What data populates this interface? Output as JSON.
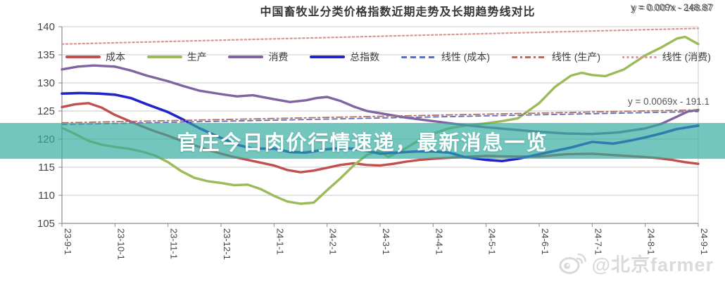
{
  "banner": {
    "text": "官庄今日肉价行情速递，最新消息一览",
    "color_rgba": "rgba(49,171,157,0.68)"
  },
  "watermark": {
    "icon": "weibo-icon",
    "text": "@北京farmer",
    "color": "#d9d9d9"
  },
  "equations": {
    "top_a": "y = 0.009x - 248.87",
    "top_b": "y = 0.007x - 168.87",
    "mid": "y = 0.0069x - 191.1"
  },
  "chart_data": {
    "type": "line",
    "title": "中国畜牧业分类价格指数近期走势及长期趋势线对比",
    "xlabel": "",
    "ylabel": "",
    "ylim": [
      105,
      140
    ],
    "y_ticks": [
      105,
      110,
      115,
      120,
      125,
      130,
      135,
      140
    ],
    "x_tick_labels": [
      "23-9-1",
      "23-10-1",
      "23-11-1",
      "23-12-1",
      "24-1-1",
      "24-2-1",
      "24-3-1",
      "24-4-1",
      "24-5-1",
      "24-6-1",
      "24-7-1",
      "24-8-1",
      "24-9-1"
    ],
    "x_range_months": [
      0,
      12
    ],
    "grid": true,
    "legend_position": "top",
    "axis_color": "#8a8a8a",
    "grid_color": "#c9c9c9",
    "tick_label_color": "#454545",
    "series": [
      {
        "name": "成本",
        "color": "#C0504D",
        "style": "solid",
        "width": 3.4,
        "points": [
          [
            0,
            125.7
          ],
          [
            0.25,
            126.2
          ],
          [
            0.5,
            126.4
          ],
          [
            0.75,
            125.6
          ],
          [
            1,
            124.3
          ],
          [
            1.25,
            123.3
          ],
          [
            1.5,
            122.3
          ],
          [
            1.75,
            121.4
          ],
          [
            2,
            120.6
          ],
          [
            2.25,
            119.7
          ],
          [
            2.5,
            118.9
          ],
          [
            2.75,
            118.1
          ],
          [
            3,
            117.4
          ],
          [
            3.25,
            116.8
          ],
          [
            3.5,
            116.3
          ],
          [
            3.75,
            115.8
          ],
          [
            4,
            115.3
          ],
          [
            4.25,
            114.5
          ],
          [
            4.5,
            114.1
          ],
          [
            4.75,
            114.4
          ],
          [
            5,
            114.9
          ],
          [
            5.25,
            115.4
          ],
          [
            5.5,
            115.7
          ],
          [
            5.75,
            115.4
          ],
          [
            6,
            115.3
          ],
          [
            6.25,
            115.6
          ],
          [
            6.5,
            116.0
          ],
          [
            6.75,
            116.3
          ],
          [
            7,
            116.5
          ],
          [
            7.5,
            116.8
          ],
          [
            8,
            117.0
          ],
          [
            8.5,
            116.9
          ],
          [
            9,
            116.9
          ],
          [
            9.25,
            117.1
          ],
          [
            9.5,
            117.3
          ],
          [
            10,
            117.4
          ],
          [
            10.5,
            117.1
          ],
          [
            11,
            116.8
          ],
          [
            11.25,
            116.6
          ],
          [
            11.5,
            116.3
          ],
          [
            11.75,
            115.9
          ],
          [
            12,
            115.6
          ]
        ]
      },
      {
        "name": "生产",
        "color": "#9BBB59",
        "style": "solid",
        "width": 3.4,
        "points": [
          [
            0,
            122.0
          ],
          [
            0.25,
            120.9
          ],
          [
            0.5,
            119.7
          ],
          [
            0.75,
            119.0
          ],
          [
            1,
            118.6
          ],
          [
            1.25,
            118.3
          ],
          [
            1.5,
            117.8
          ],
          [
            1.75,
            117.1
          ],
          [
            2,
            115.9
          ],
          [
            2.25,
            114.3
          ],
          [
            2.5,
            113.1
          ],
          [
            2.75,
            112.5
          ],
          [
            3,
            112.2
          ],
          [
            3.25,
            111.8
          ],
          [
            3.5,
            111.9
          ],
          [
            3.75,
            111.1
          ],
          [
            4,
            109.9
          ],
          [
            4.25,
            108.9
          ],
          [
            4.5,
            108.5
          ],
          [
            4.75,
            108.7
          ],
          [
            5,
            110.9
          ],
          [
            5.25,
            113.0
          ],
          [
            5.5,
            115.3
          ],
          [
            5.75,
            117.2
          ],
          [
            6,
            117.9
          ],
          [
            6.15,
            116.8
          ],
          [
            6.4,
            117.9
          ],
          [
            6.7,
            119.6
          ],
          [
            7,
            121.0
          ],
          [
            7.3,
            121.9
          ],
          [
            7.6,
            122.4
          ],
          [
            8,
            122.8
          ],
          [
            8.3,
            123.2
          ],
          [
            8.6,
            123.7
          ],
          [
            9,
            126.4
          ],
          [
            9.3,
            129.3
          ],
          [
            9.6,
            131.3
          ],
          [
            9.8,
            131.8
          ],
          [
            10,
            131.4
          ],
          [
            10.25,
            131.2
          ],
          [
            10.6,
            132.4
          ],
          [
            11,
            134.9
          ],
          [
            11.3,
            136.3
          ],
          [
            11.6,
            137.9
          ],
          [
            11.75,
            138.2
          ],
          [
            12,
            136.9
          ]
        ]
      },
      {
        "name": "消费",
        "color": "#8064A2",
        "style": "solid",
        "width": 3.4,
        "points": [
          [
            0,
            132.4
          ],
          [
            0.3,
            132.9
          ],
          [
            0.6,
            133.1
          ],
          [
            1,
            132.9
          ],
          [
            1.3,
            132.2
          ],
          [
            1.6,
            131.3
          ],
          [
            2,
            130.3
          ],
          [
            2.3,
            129.4
          ],
          [
            2.6,
            128.6
          ],
          [
            3,
            128.0
          ],
          [
            3.3,
            127.6
          ],
          [
            3.6,
            127.8
          ],
          [
            4,
            127.1
          ],
          [
            4.3,
            126.6
          ],
          [
            4.6,
            126.9
          ],
          [
            4.8,
            127.3
          ],
          [
            5,
            127.5
          ],
          [
            5.25,
            126.8
          ],
          [
            5.5,
            125.8
          ],
          [
            5.75,
            125.0
          ],
          [
            6,
            124.6
          ],
          [
            6.5,
            123.8
          ],
          [
            7,
            123.2
          ],
          [
            7.5,
            122.6
          ],
          [
            8,
            122.1
          ],
          [
            8.5,
            121.7
          ],
          [
            9,
            121.3
          ],
          [
            9.5,
            121.0
          ],
          [
            10,
            120.9
          ],
          [
            10.5,
            121.2
          ],
          [
            11,
            121.9
          ],
          [
            11.3,
            122.7
          ],
          [
            11.6,
            124.0
          ],
          [
            11.8,
            124.9
          ],
          [
            12,
            125.2
          ]
        ]
      },
      {
        "name": "总指数",
        "color": "#2323CC",
        "style": "solid",
        "width": 3.6,
        "points": [
          [
            0,
            128.1
          ],
          [
            0.35,
            128.2
          ],
          [
            0.7,
            128.1
          ],
          [
            1,
            127.9
          ],
          [
            1.3,
            127.3
          ],
          [
            1.6,
            126.2
          ],
          [
            2,
            124.8
          ],
          [
            2.3,
            123.4
          ],
          [
            2.6,
            121.9
          ],
          [
            3,
            120.2
          ],
          [
            3.3,
            119.0
          ],
          [
            3.6,
            118.3
          ],
          [
            4,
            118.3
          ],
          [
            4.3,
            117.7
          ],
          [
            4.6,
            117.6
          ],
          [
            5,
            118.2
          ],
          [
            5.3,
            118.4
          ],
          [
            5.6,
            118.2
          ],
          [
            6,
            117.4
          ],
          [
            6.3,
            117.6
          ],
          [
            6.7,
            117.8
          ],
          [
            7,
            117.8
          ],
          [
            7.3,
            117.6
          ],
          [
            7.6,
            116.8
          ],
          [
            8,
            116.3
          ],
          [
            8.3,
            116.1
          ],
          [
            8.6,
            116.5
          ],
          [
            9,
            117.3
          ],
          [
            9.3,
            117.9
          ],
          [
            9.6,
            118.5
          ],
          [
            10,
            119.5
          ],
          [
            10.4,
            119.2
          ],
          [
            10.7,
            119.7
          ],
          [
            11,
            120.3
          ],
          [
            11.3,
            121.0
          ],
          [
            11.6,
            121.8
          ],
          [
            12,
            122.4
          ]
        ]
      },
      {
        "name": "线性 (成本)",
        "color": "#5F6FB4",
        "style": "dashed",
        "width": 1.8,
        "points": [
          [
            0,
            122.6
          ],
          [
            12,
            124.9
          ]
        ]
      },
      {
        "name": "线性 (生产)",
        "color": "#AE6F66",
        "style": "dashdot",
        "width": 1.8,
        "points": [
          [
            0,
            122.9
          ],
          [
            12,
            125.2
          ]
        ]
      },
      {
        "name": "线性 (消费)",
        "color": "#D99694",
        "style": "dotted",
        "width": 2.2,
        "points": [
          [
            0,
            136.9
          ],
          [
            12,
            139.7
          ]
        ]
      }
    ]
  }
}
